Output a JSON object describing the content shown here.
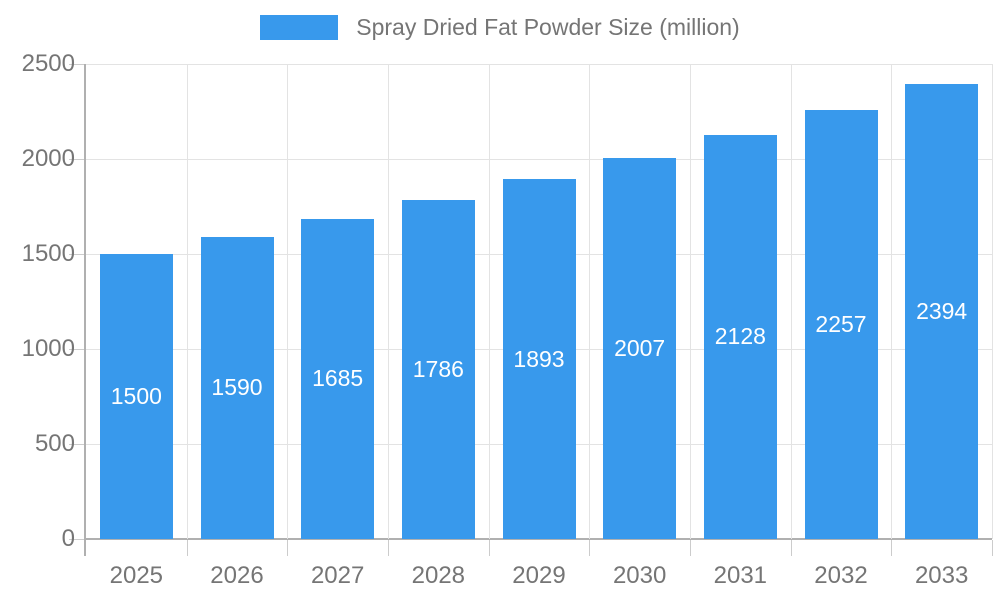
{
  "chart_data": {
    "type": "bar",
    "title": "Spray Dried Fat Powder Size (million)",
    "categories": [
      "2025",
      "2026",
      "2027",
      "2028",
      "2029",
      "2030",
      "2031",
      "2032",
      "2033"
    ],
    "values": [
      1500,
      1590,
      1685,
      1786,
      1893,
      2007,
      2128,
      2257,
      2394
    ],
    "xlabel": "",
    "ylabel": "",
    "ylim": [
      0,
      2500
    ],
    "yticks": [
      0,
      500,
      1000,
      1500,
      2000,
      2500
    ],
    "legend_position": "top-center",
    "grid": true,
    "bar_labels_inside": true
  },
  "colors": {
    "bar": "#3899EC",
    "bar_label": "#ffffff",
    "axis_text": "#757575",
    "gridline": "#e3e3e3",
    "axis_line": "#b0b0b0",
    "tick": "#cccccc",
    "background": "#ffffff"
  }
}
